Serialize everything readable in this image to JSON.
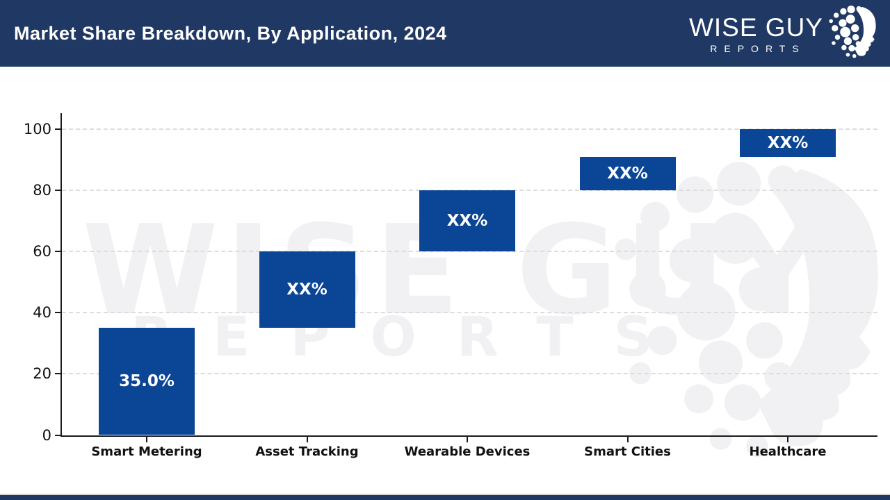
{
  "header": {
    "title": "Market Share Breakdown, By Application, 2024",
    "logo": {
      "line1": "WISE GUY",
      "line2": "REPORTS"
    }
  },
  "watermark": {
    "line1": "WISE GUY",
    "line2": "REPORTS"
  },
  "chart_data": {
    "type": "bar",
    "variant": "waterfall",
    "title": "Market Share Breakdown, By Application, 2024",
    "categories": [
      "Smart Metering",
      "Asset Tracking",
      "Wearable Devices",
      "Smart Cities",
      "Healthcare"
    ],
    "segments": [
      {
        "category": "Smart Metering",
        "start": 0,
        "end": 35,
        "label": "35.0%"
      },
      {
        "category": "Asset Tracking",
        "start": 35,
        "end": 60,
        "label": "XX%"
      },
      {
        "category": "Wearable Devices",
        "start": 60,
        "end": 80,
        "label": "XX%"
      },
      {
        "category": "Smart Cities",
        "start": 80,
        "end": 91,
        "label": "XX%"
      },
      {
        "category": "Healthcare",
        "start": 91,
        "end": 100,
        "label": "XX%"
      }
    ],
    "yticks": [
      0,
      20,
      40,
      60,
      80,
      100
    ],
    "ylim": [
      0,
      105
    ],
    "xlabel": "",
    "ylabel": "",
    "grid": "horizontal-dashed",
    "legend": "none"
  },
  "colors": {
    "header_bg": "#1F3864",
    "bar": "#0A4596",
    "bar_label": "#FFFFFF",
    "grid": "#DCDCDC",
    "axis": "#1A1A1A",
    "watermark": "#F1F1F3",
    "footer_bar": "#1F3864"
  }
}
